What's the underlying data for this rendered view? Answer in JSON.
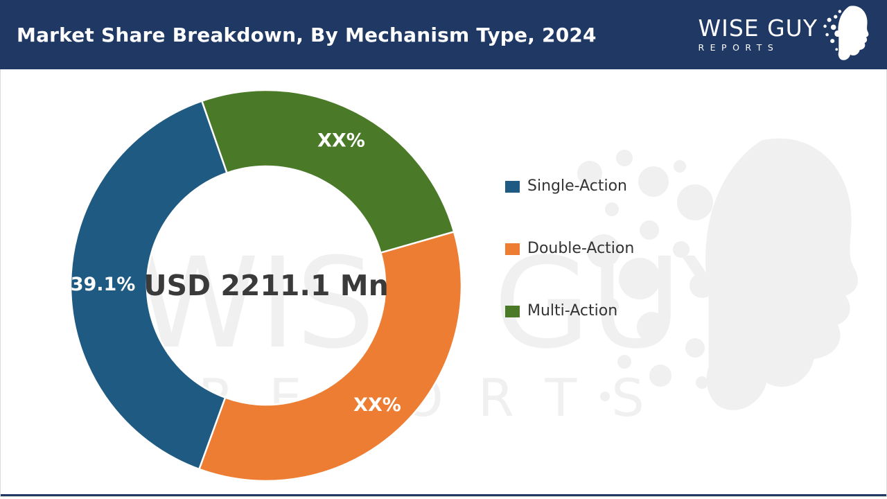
{
  "header": {
    "title": "Market Share Breakdown, By Mechanism Type, 2024",
    "bg_color": "#203864",
    "brand": {
      "line1": "WISE GUY",
      "line2": "REPORTS"
    }
  },
  "chart_data": {
    "type": "donut",
    "title": "Market Share Breakdown, By Mechanism Type, 2024",
    "center_label": "USD 2211.1 Mn",
    "inner_radius_ratio": 0.61,
    "label_radius_ratio": 0.835,
    "start_angle_cw_from_top_deg": -19.2,
    "legend_position": "right",
    "segments": [
      {
        "label": "Single-Action",
        "value_pct": 39.1,
        "display_label": "39.1%",
        "color": "#1f5a82"
      },
      {
        "label": "Double-Action",
        "value_pct": 35.0,
        "display_label": "XX%",
        "color": "#ec7d33"
      },
      {
        "label": "Multi-Action",
        "value_pct": 25.9,
        "display_label": "XX%",
        "color": "#4a7a28"
      }
    ]
  },
  "watermark": {
    "line1": "WISE GUY",
    "line2": "REPORTS"
  },
  "colors": {
    "header_navy": "#203864",
    "slice_blue": "#1f5a82",
    "slice_orange": "#ec7d33",
    "slice_green": "#4a7a28",
    "center_text": "#3a3a3a",
    "legend_text": "#333333",
    "watermark_gray": "#f0f0f0",
    "frame_gray": "#d9d9d9"
  }
}
